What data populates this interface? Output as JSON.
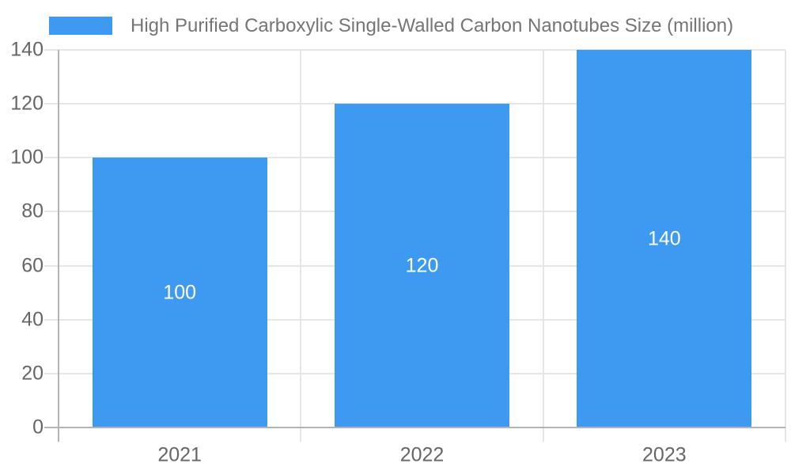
{
  "legend": {
    "label": "High Purified Carboxylic Single-Walled Carbon Nanotubes Size (million)"
  },
  "chart_data": {
    "type": "bar",
    "title": "",
    "xlabel": "",
    "ylabel": "",
    "categories": [
      "2021",
      "2022",
      "2023"
    ],
    "values": [
      100,
      120,
      140
    ],
    "series": [
      {
        "name": "High Purified Carboxylic Single-Walled Carbon Nanotubes Size (million)",
        "values": [
          100,
          120,
          140
        ]
      }
    ],
    "bar_value_labels": [
      "100",
      "120",
      "140"
    ],
    "ylim": [
      0,
      140
    ],
    "yticks": [
      0,
      20,
      40,
      60,
      80,
      100,
      120,
      140
    ],
    "grid": true,
    "legend_position": "top",
    "colors": {
      "bar": "#3E9AF0",
      "grid": "#E6E6E6",
      "axis": "#B3B3B3",
      "tick_label": "#666666",
      "data_label": "#FFFFFF",
      "legend_text": "#757575",
      "background": "#FFFFFF"
    }
  }
}
